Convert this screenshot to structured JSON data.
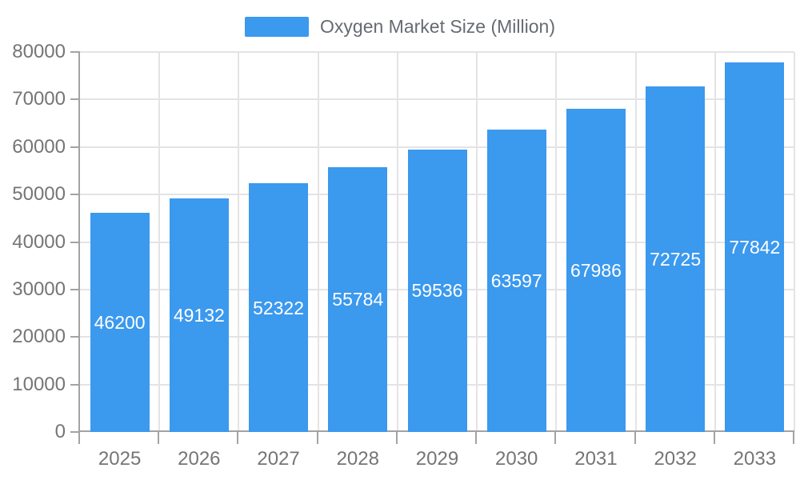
{
  "legend": {
    "label": "Oxygen Market Size (Million)"
  },
  "chart_data": {
    "type": "bar",
    "title": "Oxygen Market Size (Million)",
    "series_name": "Oxygen Market Size (Million)",
    "categories": [
      "2025",
      "2026",
      "2027",
      "2028",
      "2029",
      "2030",
      "2031",
      "2032",
      "2033"
    ],
    "values": [
      46200,
      49132,
      52322,
      55784,
      59536,
      63597,
      67986,
      72725,
      77842
    ],
    "value_labels": [
      "46200",
      "49132",
      "52322",
      "55784",
      "59536",
      "63597",
      "67986",
      "72725",
      "77842"
    ],
    "xlabel": "",
    "ylabel": "",
    "ylim": [
      0,
      80000
    ],
    "y_tick_step": 10000,
    "y_tick_labels": [
      "0",
      "10000",
      "20000",
      "30000",
      "40000",
      "50000",
      "60000",
      "70000",
      "80000"
    ],
    "grid": true,
    "legend_position": "top-center",
    "value_label_position": "inside-center"
  },
  "colors": {
    "bar": "#3b99ee",
    "grid": "#e4e4e4",
    "axis": "#a3a3a3",
    "axis_text": "#757575",
    "legend_text": "#666b73",
    "value_label_text": "#ffffff",
    "background": "#ffffff"
  }
}
